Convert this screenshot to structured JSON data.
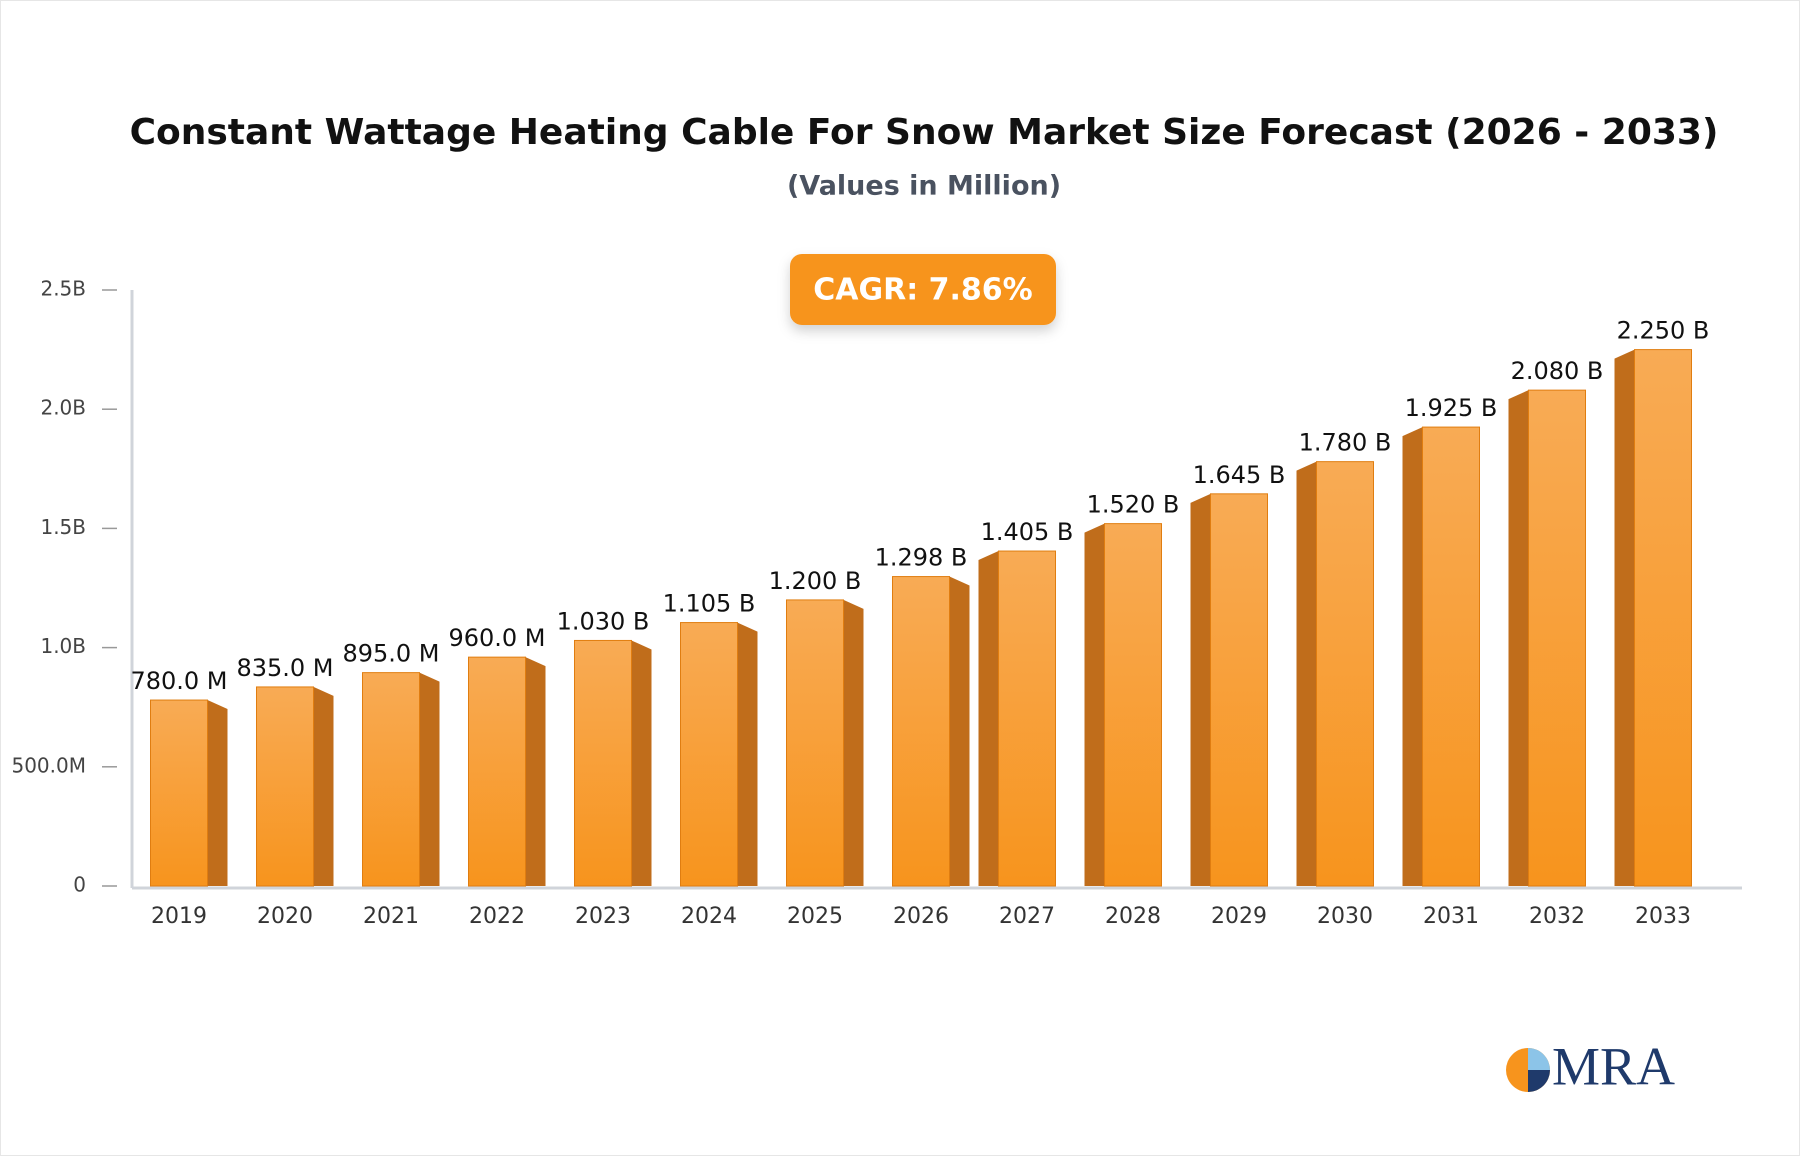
{
  "chart_data": {
    "type": "bar3d",
    "title": "Constant Wattage Heating Cable For Snow Market Size Forecast (2026 - 2033)",
    "subtitle": "(Values in Million)",
    "annotation": "CAGR: 7.86%",
    "logo": "MRA",
    "categories": [
      "2019",
      "2020",
      "2021",
      "2022",
      "2023",
      "2024",
      "2025",
      "2026",
      "2027",
      "2028",
      "2029",
      "2030",
      "2031",
      "2032",
      "2033"
    ],
    "values": [
      780,
      835,
      895,
      960,
      1030,
      1105,
      1200,
      1298,
      1405,
      1520,
      1645,
      1780,
      1925,
      2080,
      2250
    ],
    "value_labels": [
      "780.0 M",
      "835.0 M",
      "895.0 M",
      "960.0 M",
      "1.030 B",
      "1.105 B",
      "1.200 B",
      "1.298 B",
      "1.405 B",
      "1.520 B",
      "1.645 B",
      "1.780 B",
      "1.925 B",
      "2.080 B",
      "2.250 B"
    ],
    "color": "#f7941d",
    "ylim": [
      0,
      2500
    ],
    "yticks": [
      0,
      {
        "value": 500,
        "label": "500.0M"
      },
      {
        "value": 1000,
        "label": "1.0B"
      },
      {
        "value": 1500,
        "label": "1.5B"
      },
      {
        "value": 2000,
        "label": "2.0B"
      },
      {
        "value": 2500,
        "label": "2.5B"
      }
    ],
    "grid": false
  }
}
